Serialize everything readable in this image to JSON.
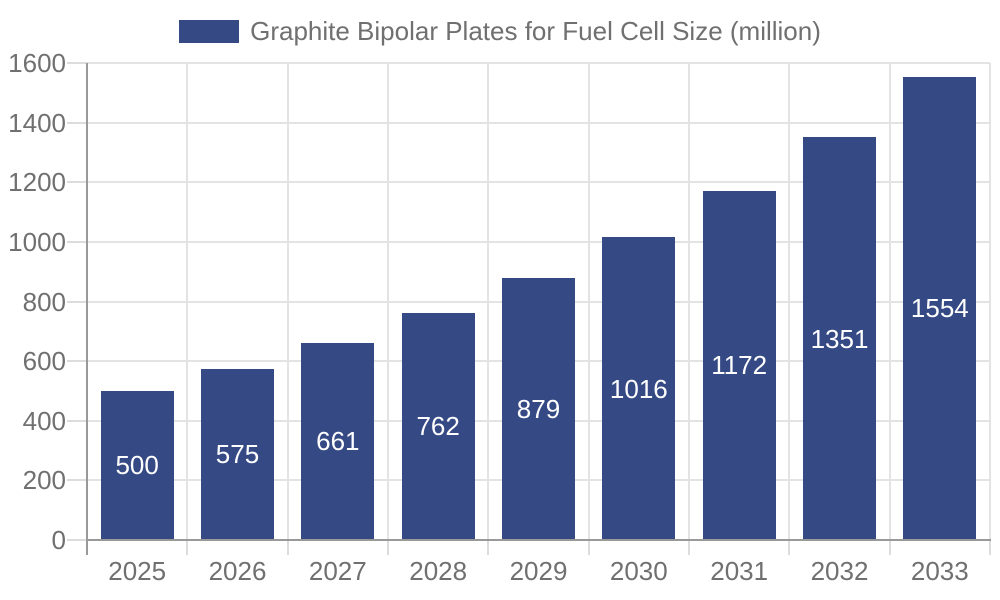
{
  "legend": {
    "label": "Graphite Bipolar Plates for Fuel Cell Size (million)"
  },
  "colors": {
    "bar": "#354a85",
    "grid": "#e3e3e3",
    "tick": "#dcdcdc",
    "axis": "#999999",
    "text": "#707070",
    "value_label": "#ffffff",
    "background": "#ffffff"
  },
  "chart_data": {
    "type": "bar",
    "title": "Graphite Bipolar Plates for Fuel Cell Size (million)",
    "categories": [
      "2025",
      "2026",
      "2027",
      "2028",
      "2029",
      "2030",
      "2031",
      "2032",
      "2033"
    ],
    "values": [
      500,
      575,
      661,
      762,
      879,
      1016,
      1172,
      1351,
      1554
    ],
    "xlabel": "",
    "ylabel": "",
    "ylim": [
      0,
      1600
    ],
    "y_ticks": [
      0,
      200,
      400,
      600,
      800,
      1000,
      1200,
      1400,
      1600
    ],
    "grid": true,
    "legend_position": "top",
    "bar_labels_inside": true
  }
}
